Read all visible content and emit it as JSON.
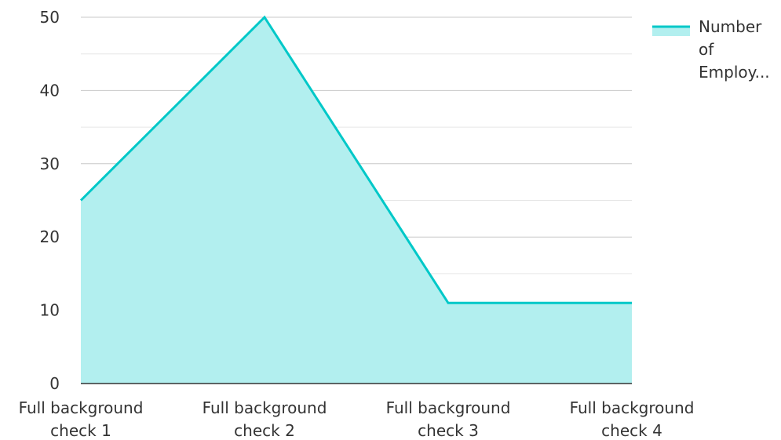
{
  "chart_data": {
    "type": "area",
    "categories": [
      [
        "Full background",
        "check 1"
      ],
      [
        "Full background",
        "check 2"
      ],
      [
        "Full background",
        "check 3"
      ],
      [
        "Full background",
        "check 4"
      ]
    ],
    "series": [
      {
        "name": [
          "Number",
          "of",
          "Employ..."
        ],
        "values": [
          25,
          50,
          11,
          11
        ],
        "color": "#00c8c8",
        "fill_color": "#b2efef"
      }
    ],
    "ylim": [
      0,
      50
    ],
    "yticks": [
      "0",
      "10",
      "20",
      "30",
      "40",
      "50"
    ],
    "grid": true,
    "legend": "top-right"
  }
}
